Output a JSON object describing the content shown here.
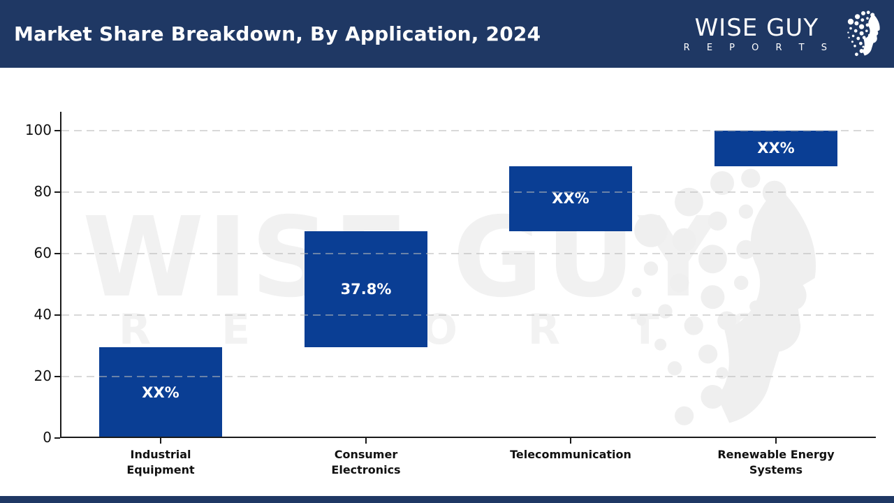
{
  "header": {
    "title": "Market Share Breakdown, By Application, 2024",
    "logo": {
      "line1": "WISE GUY",
      "line2": "R E P O R T S"
    }
  },
  "watermark": {
    "line1": "WISE GUY",
    "line2": "R E P O R T S"
  },
  "chart_data": {
    "type": "bar",
    "subtype": "waterfall-floating-bars",
    "title": "Market Share Breakdown, By Application, 2024",
    "categories": [
      "Industrial Equipment",
      "Consumer Electronics",
      "Telecommunication",
      "Renewable Energy Systems"
    ],
    "category_lines": [
      [
        "Industrial",
        "Equipment"
      ],
      [
        "Consumer",
        "Electronics"
      ],
      [
        "Telecommunication"
      ],
      [
        "Renewable Energy",
        "Systems"
      ]
    ],
    "segments": [
      {
        "category": "Industrial Equipment",
        "start": 0,
        "end": 29.5,
        "value": 29.5,
        "label": "XX%"
      },
      {
        "category": "Consumer Electronics",
        "start": 29.5,
        "end": 67.3,
        "value": 37.8,
        "label": "37.8%"
      },
      {
        "category": "Telecommunication",
        "start": 67.3,
        "end": 88.5,
        "value": 21.2,
        "label": "XX%"
      },
      {
        "category": "Renewable Energy Systems",
        "start": 88.5,
        "end": 100,
        "value": 11.5,
        "label": "XX%"
      }
    ],
    "yticks": [
      0,
      20,
      40,
      60,
      80,
      100
    ],
    "ylim": [
      0,
      105
    ],
    "xlabel": "",
    "ylabel": "",
    "grid": "horizontal-dashed",
    "legend": "none",
    "bar_color": "#0a3e94",
    "bar_label_color": "#ffffff"
  },
  "colors": {
    "header_bg": "#1f3864",
    "footer_bg": "#1f3864",
    "bar": "#0a3e94",
    "title_text": "#ffffff",
    "axis_text": "#111111",
    "grid": "#d9d9d9",
    "watermark": "#f0f0f0"
  }
}
